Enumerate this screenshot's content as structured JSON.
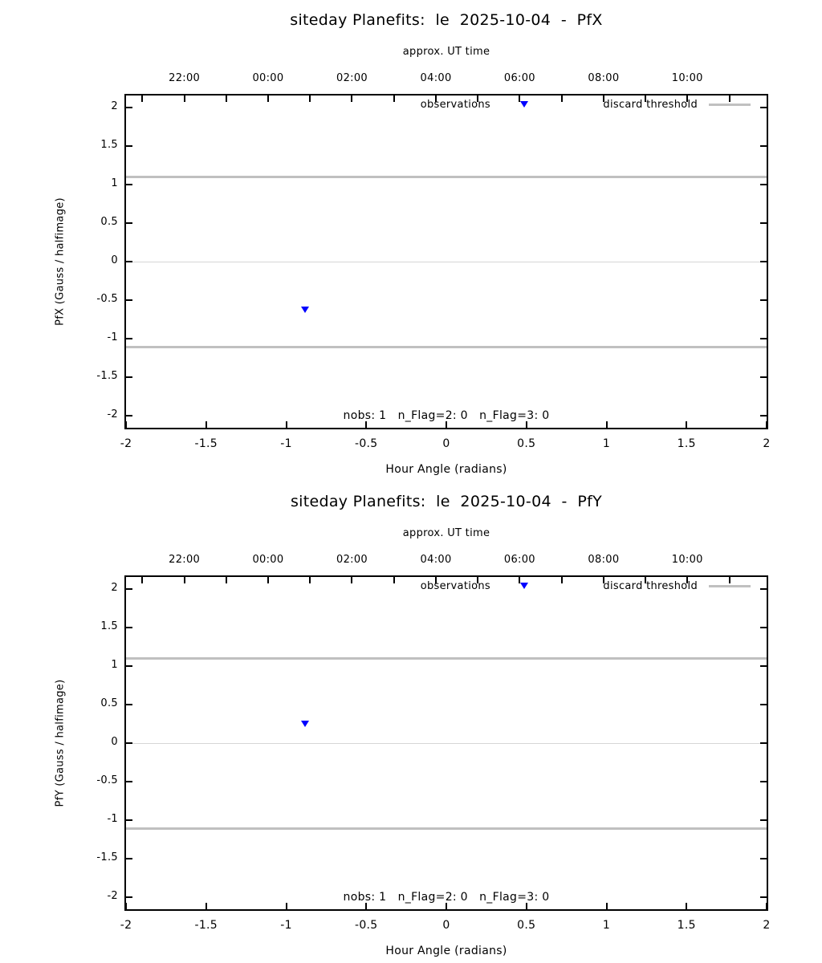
{
  "page": {
    "background": "#ffffff"
  },
  "chart_data": [
    {
      "type": "scatter",
      "title": "siteday Planefits:  le  2025-10-04  -  PfX",
      "top_axis_label": "approx. UT time",
      "top_axis_ticks": [
        {
          "ha": -1.898,
          "label": ""
        },
        {
          "ha": -1.636,
          "label": "22:00"
        },
        {
          "ha": -1.375,
          "label": ""
        },
        {
          "ha": -1.113,
          "label": "00:00"
        },
        {
          "ha": -0.851,
          "label": ""
        },
        {
          "ha": -0.589,
          "label": "02:00"
        },
        {
          "ha": -0.327,
          "label": ""
        },
        {
          "ha": -0.065,
          "label": "04:00"
        },
        {
          "ha": 0.196,
          "label": ""
        },
        {
          "ha": 0.458,
          "label": "06:00"
        },
        {
          "ha": 0.72,
          "label": ""
        },
        {
          "ha": 0.982,
          "label": "08:00"
        },
        {
          "ha": 1.244,
          "label": ""
        },
        {
          "ha": 1.505,
          "label": "10:00"
        },
        {
          "ha": 1.767,
          "label": ""
        }
      ],
      "xlabel": "Hour Angle (radians)",
      "ylabel": "PfX (Gauss / halfimage)",
      "xlim": [
        -2,
        2
      ],
      "ylim": [
        -2.155,
        2.155
      ],
      "x_ticks": [
        {
          "v": -2,
          "label": "-2"
        },
        {
          "v": -1.5,
          "label": "-1.5"
        },
        {
          "v": -1,
          "label": "-1"
        },
        {
          "v": -0.5,
          "label": "-0.5"
        },
        {
          "v": 0,
          "label": "0"
        },
        {
          "v": 0.5,
          "label": "0.5"
        },
        {
          "v": 1,
          "label": "1"
        },
        {
          "v": 1.5,
          "label": "1.5"
        },
        {
          "v": 2,
          "label": "2"
        }
      ],
      "y_ticks": [
        {
          "v": 2,
          "label": "2"
        },
        {
          "v": 1.5,
          "label": "1.5"
        },
        {
          "v": 1,
          "label": "1"
        },
        {
          "v": 0.5,
          "label": "0.5"
        },
        {
          "v": 0,
          "label": "0"
        },
        {
          "v": -0.5,
          "label": "-0.5"
        },
        {
          "v": -1,
          "label": "-1"
        },
        {
          "v": -1.5,
          "label": "-1.5"
        },
        {
          "v": -2,
          "label": "-2"
        }
      ],
      "series": [
        {
          "name": "observations",
          "marker": "triangle-down",
          "color": "#0000ff",
          "points": [
            {
              "x": -0.88,
              "y": -0.62
            }
          ]
        },
        {
          "name": "discard threshold",
          "marker": "line",
          "color": "#c0c0c0",
          "values": [
            1.1,
            -1.1
          ]
        }
      ],
      "zero_line": {
        "y": 0,
        "color": "#d6d6d6"
      },
      "annotation": "nobs: 1   n_Flag=2: 0   n_Flag=3: 0",
      "grid": false,
      "legend_position": "top-right-inside"
    },
    {
      "type": "scatter",
      "title": "siteday Planefits:  le  2025-10-04  -  PfY",
      "top_axis_label": "approx. UT time",
      "top_axis_ticks": [
        {
          "ha": -1.898,
          "label": ""
        },
        {
          "ha": -1.636,
          "label": "22:00"
        },
        {
          "ha": -1.375,
          "label": ""
        },
        {
          "ha": -1.113,
          "label": "00:00"
        },
        {
          "ha": -0.851,
          "label": ""
        },
        {
          "ha": -0.589,
          "label": "02:00"
        },
        {
          "ha": -0.327,
          "label": ""
        },
        {
          "ha": -0.065,
          "label": "04:00"
        },
        {
          "ha": 0.196,
          "label": ""
        },
        {
          "ha": 0.458,
          "label": "06:00"
        },
        {
          "ha": 0.72,
          "label": ""
        },
        {
          "ha": 0.982,
          "label": "08:00"
        },
        {
          "ha": 1.244,
          "label": ""
        },
        {
          "ha": 1.505,
          "label": "10:00"
        },
        {
          "ha": 1.767,
          "label": ""
        }
      ],
      "xlabel": "Hour Angle (radians)",
      "ylabel": "PfY (Gauss / halfimage)",
      "xlim": [
        -2,
        2
      ],
      "ylim": [
        -2.155,
        2.155
      ],
      "x_ticks": [
        {
          "v": -2,
          "label": "-2"
        },
        {
          "v": -1.5,
          "label": "-1.5"
        },
        {
          "v": -1,
          "label": "-1"
        },
        {
          "v": -0.5,
          "label": "-0.5"
        },
        {
          "v": 0,
          "label": "0"
        },
        {
          "v": 0.5,
          "label": "0.5"
        },
        {
          "v": 1,
          "label": "1"
        },
        {
          "v": 1.5,
          "label": "1.5"
        },
        {
          "v": 2,
          "label": "2"
        }
      ],
      "y_ticks": [
        {
          "v": 2,
          "label": "2"
        },
        {
          "v": 1.5,
          "label": "1.5"
        },
        {
          "v": 1,
          "label": "1"
        },
        {
          "v": 0.5,
          "label": "0.5"
        },
        {
          "v": 0,
          "label": "0"
        },
        {
          "v": -0.5,
          "label": "-0.5"
        },
        {
          "v": -1,
          "label": "-1"
        },
        {
          "v": -1.5,
          "label": "-1.5"
        },
        {
          "v": -2,
          "label": "-2"
        }
      ],
      "series": [
        {
          "name": "observations",
          "marker": "triangle-down",
          "color": "#0000ff",
          "points": [
            {
              "x": -0.88,
              "y": 0.25
            }
          ]
        },
        {
          "name": "discard threshold",
          "marker": "line",
          "color": "#c0c0c0",
          "values": [
            1.1,
            -1.1
          ]
        }
      ],
      "zero_line": {
        "y": 0,
        "color": "#d6d6d6"
      },
      "annotation": "nobs: 1   n_Flag=2: 0   n_Flag=3: 0",
      "grid": false,
      "legend_position": "top-right-inside"
    }
  ]
}
